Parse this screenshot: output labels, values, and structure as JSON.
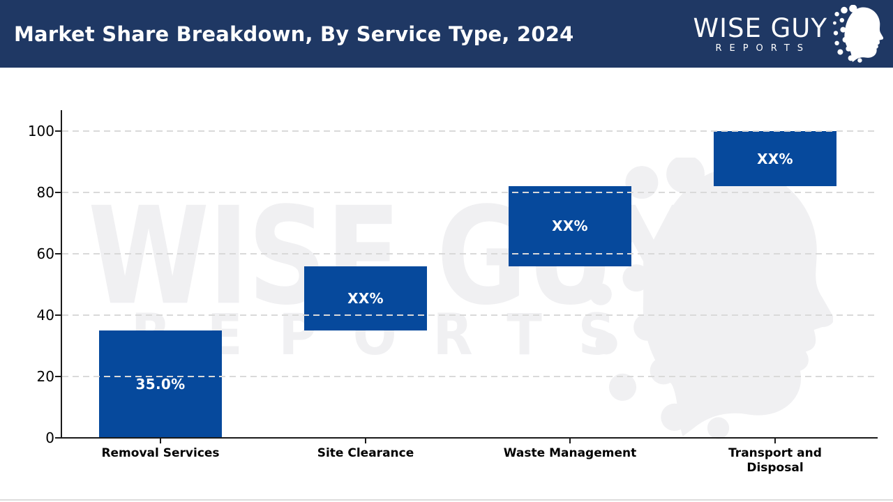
{
  "header": {
    "title": "Market Share Breakdown, By Service Type, 2024",
    "logo": {
      "line1": "WISE GUY",
      "line2": "REPORTS"
    }
  },
  "watermark": {
    "line1": "WISE GUY",
    "line2": "REPORTS"
  },
  "chart_data": {
    "type": "bar",
    "subtype": "waterfall",
    "title": "Market Share Breakdown, By Service Type, 2024",
    "categories": [
      "Removal Services",
      "Site Clearance",
      "Waste Management",
      "Transport and Disposal"
    ],
    "xtick_labels": [
      "Removal Services",
      "Site Clearance",
      "Waste Management",
      "Transport and\nDisposal"
    ],
    "segments": [
      {
        "category": "Removal Services",
        "start": 0,
        "end": 35,
        "label": "35.0%"
      },
      {
        "category": "Site Clearance",
        "start": 35,
        "end": 56,
        "label": "XX%"
      },
      {
        "category": "Waste Management",
        "start": 56,
        "end": 82,
        "label": "XX%"
      },
      {
        "category": "Transport and Disposal",
        "start": 82,
        "end": 100,
        "label": "XX%"
      }
    ],
    "yticks": [
      0,
      20,
      40,
      60,
      80,
      100
    ],
    "ylim": [
      0,
      100
    ],
    "grid": "horizontal dashed, on top of bars",
    "legend": "none",
    "bar_color": "#06499c",
    "grid_color": "#d9d9d9",
    "header_color": "#1f3864",
    "watermark_color": "#f0f0f2"
  }
}
